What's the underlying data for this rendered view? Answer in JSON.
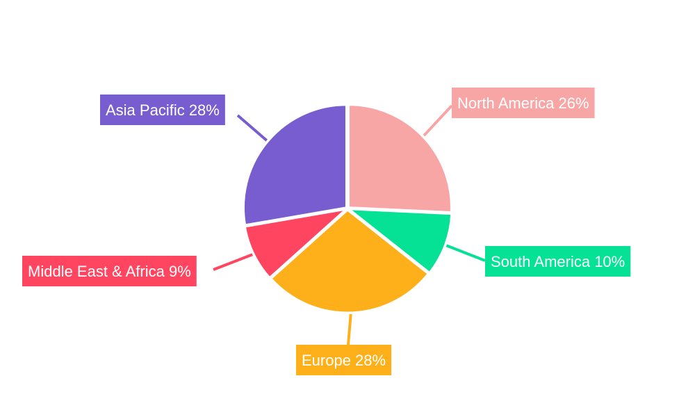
{
  "chart_data": {
    "type": "pie",
    "title": "",
    "slices": [
      {
        "label": "North America",
        "value": 26,
        "display": "North America 26%",
        "color": "#F8A5A6"
      },
      {
        "label": "South America",
        "value": 10,
        "display": "South America 10%",
        "color": "#05E195"
      },
      {
        "label": "Europe",
        "value": 28,
        "display": "Europe 28%",
        "color": "#FDB019"
      },
      {
        "label": "Middle East & Africa",
        "value": 9,
        "display": "Middle East & Africa 9%",
        "color": "#FF4560"
      },
      {
        "label": "Asia Pacific",
        "value": 28,
        "display": "Asia Pacific 28%",
        "color": "#775DD0"
      }
    ],
    "start_angle": "12 o'clock",
    "direction": "clockwise",
    "legend": "none",
    "labels": "outside with leader lines"
  }
}
